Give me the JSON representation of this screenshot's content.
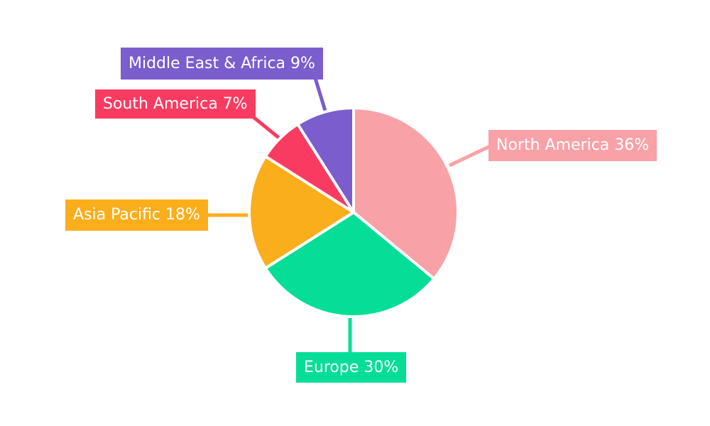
{
  "chart_data": {
    "type": "pie",
    "title": "",
    "categories": [
      "North America",
      "Europe",
      "Asia Pacific",
      "South America",
      "Middle East & Africa"
    ],
    "values": [
      36,
      30,
      18,
      7,
      9
    ],
    "unit": "%",
    "colors": [
      "#F8A2A8",
      "#06DE98",
      "#FBAE1C",
      "#FA3B61",
      "#7B5DCE"
    ],
    "labels": [
      "North America 36%",
      "Europe 30%",
      "Asia Pacific 18%",
      "South America 7%",
      "Middle East & Africa 9%"
    ],
    "slice_order": "clockwise-from-top",
    "legend_position": "callout-labels",
    "background": "#FFFFFF",
    "label_text_color": "#FFFFFF",
    "slice_border_color": "#FFFFFF"
  }
}
